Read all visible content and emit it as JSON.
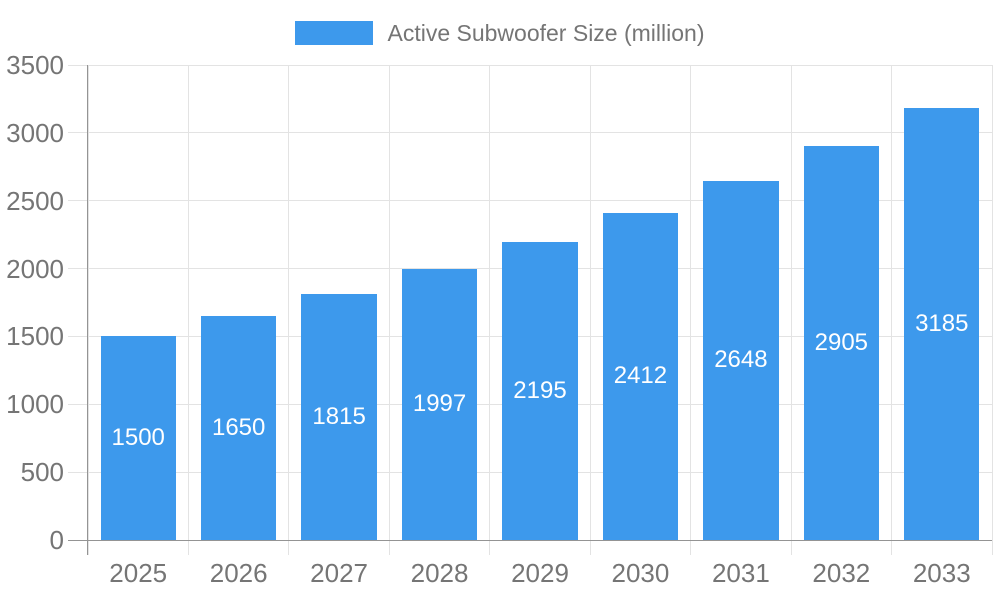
{
  "legend": {
    "label": "Active Subwoofer Size (million)"
  },
  "colors": {
    "bar": "#3D99EC",
    "grid": "#E3E3E3",
    "axis": "#949494",
    "text": "#757575",
    "bar_label": "#FFFFFF",
    "background": "#FFFFFF"
  },
  "chart_data": {
    "type": "bar",
    "title": "Active Subwoofer Size (million)",
    "categories": [
      "2025",
      "2026",
      "2027",
      "2028",
      "2029",
      "2030",
      "2031",
      "2032",
      "2033"
    ],
    "values": [
      1500,
      1650,
      1815,
      1997,
      2195,
      2412,
      2648,
      2905,
      3185
    ],
    "xlabel": "",
    "ylabel": "",
    "ylim": [
      0,
      3500
    ],
    "y_ticks": [
      0,
      500,
      1000,
      1500,
      2000,
      2500,
      3000,
      3500
    ],
    "grid": true,
    "legend_position": "top",
    "bar_label_position": "inside-center"
  }
}
